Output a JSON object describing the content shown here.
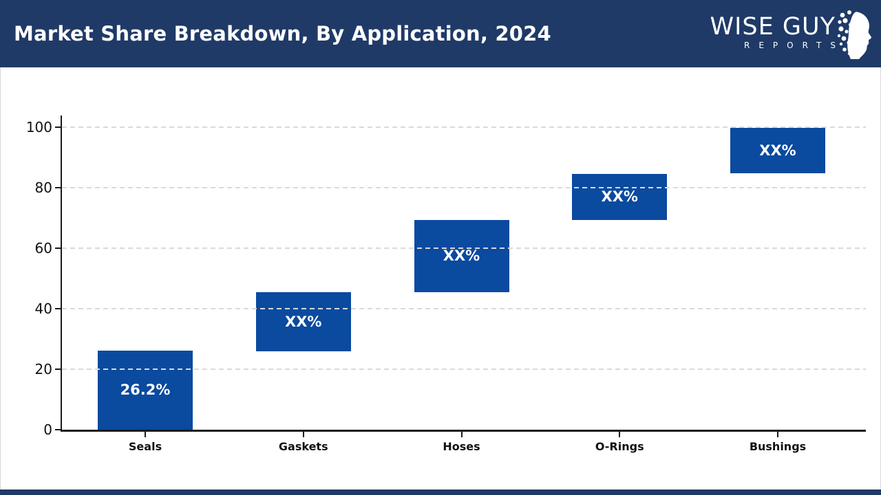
{
  "header": {
    "title": "Market Share Breakdown, By Application, 2024",
    "bg_color": "#1f3a67",
    "text_color": "#ffffff",
    "logo": {
      "line1": "WISE GUY",
      "line2": "REPORTS"
    }
  },
  "watermark": {
    "line1": "WISE GUY",
    "line2": "REPORTS"
  },
  "chart_data": {
    "type": "bar",
    "subtype": "waterfall",
    "title": "Market Share Breakdown, By Application, 2024",
    "xlabel": "",
    "ylabel": "",
    "categories": [
      "Seals",
      "Gaskets",
      "Hoses",
      "O-Rings",
      "Bushings"
    ],
    "segments": [
      {
        "category": "Seals",
        "start": 0,
        "end": 26.2,
        "label": "26.2%"
      },
      {
        "category": "Gaskets",
        "start": 25.8,
        "end": 45.5,
        "label": "XX%"
      },
      {
        "category": "Hoses",
        "start": 45.5,
        "end": 69.3,
        "label": "XX%"
      },
      {
        "category": "O-Rings",
        "start": 69.4,
        "end": 84.6,
        "label": "XX%"
      },
      {
        "category": "Bushings",
        "start": 84.7,
        "end": 99.7,
        "label": "XX%"
      }
    ],
    "yticks": [
      0,
      20,
      40,
      60,
      80,
      100
    ],
    "ylim": [
      0,
      104
    ],
    "grid": true,
    "gridline_style": "dashed",
    "gridline_color": "#dadada",
    "bar_color": "#0a4a9f",
    "bar_label_color": "#ffffff",
    "axis_color": "#1a1a1a",
    "legend": "none"
  }
}
